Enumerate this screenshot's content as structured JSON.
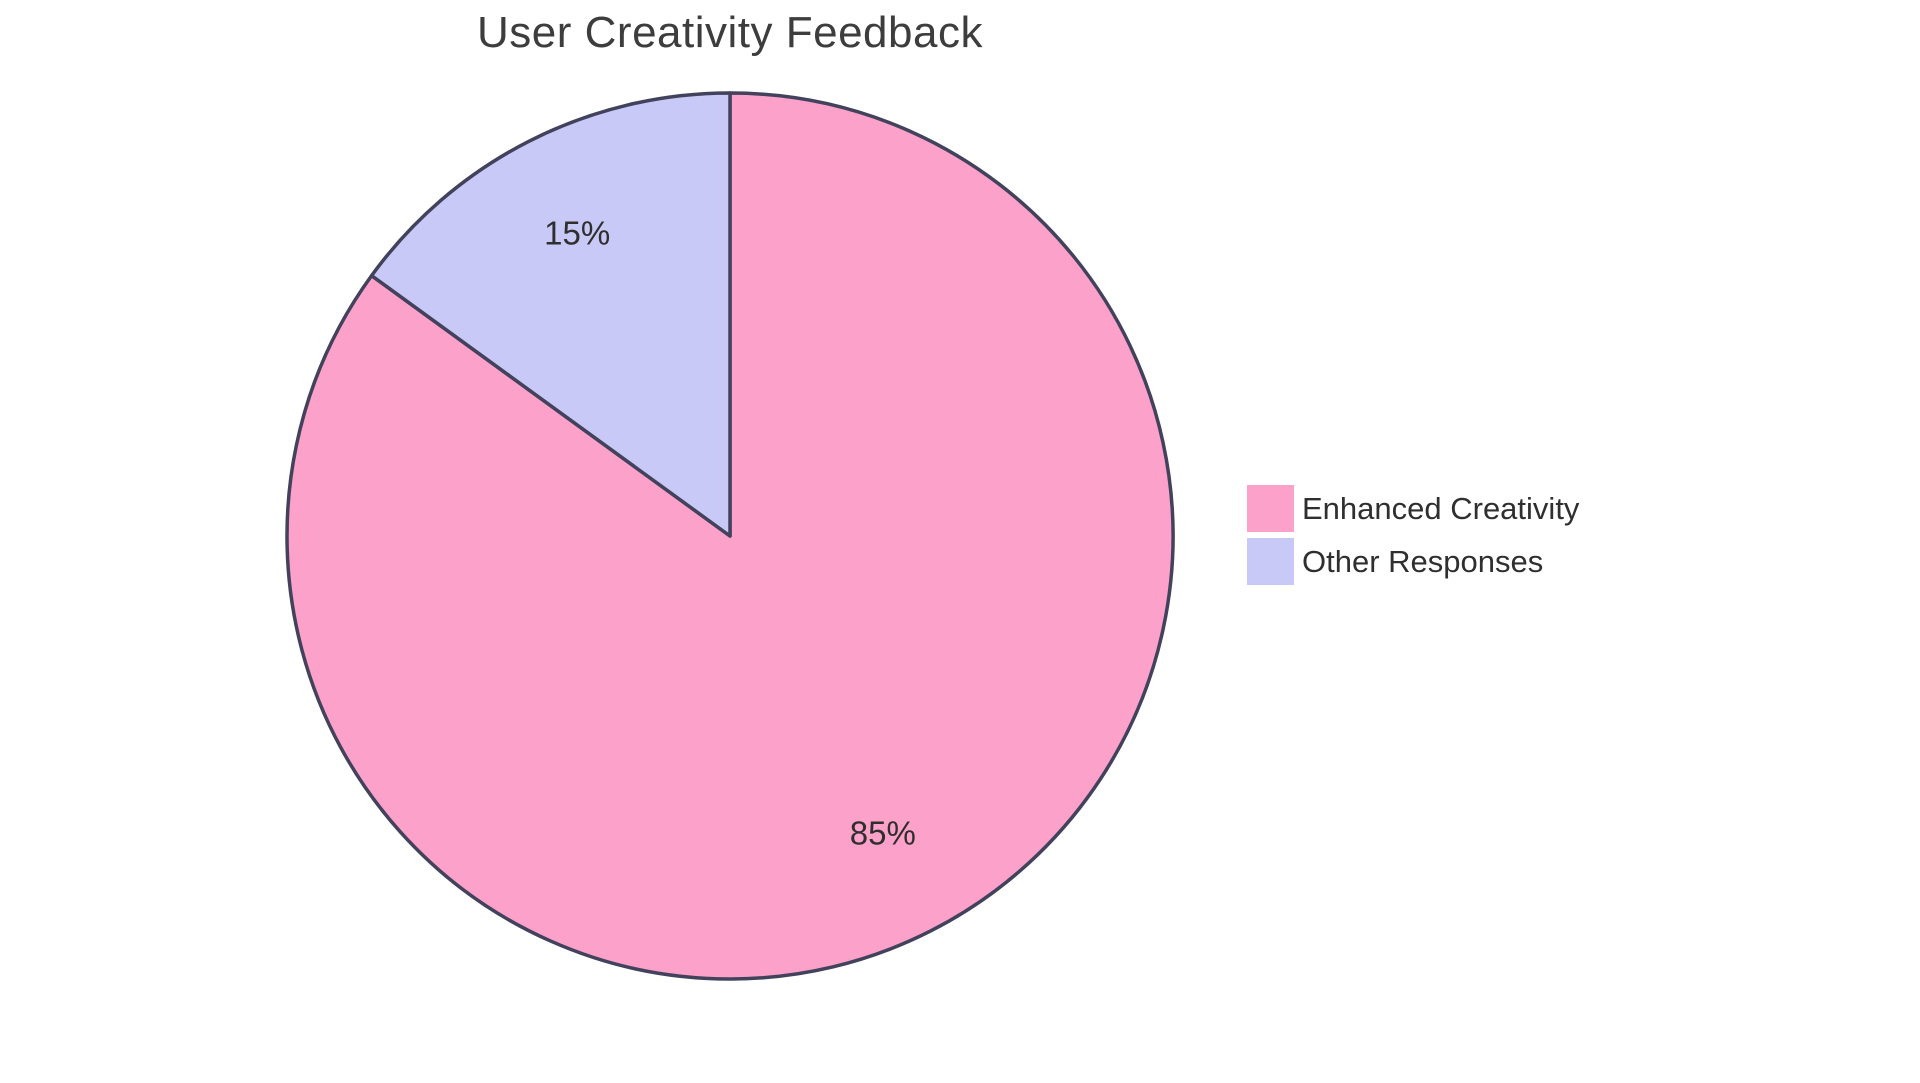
{
  "chart_data": {
    "type": "pie",
    "title": "User Creativity Feedback",
    "slices": [
      {
        "label": "Enhanced Creativity",
        "value": 85,
        "display": "85%",
        "color": "#FCA1C9"
      },
      {
        "label": "Other Responses",
        "value": 15,
        "display": "15%",
        "color": "#C9C9F7"
      }
    ],
    "start_angle_deg": -90,
    "direction": "clockwise",
    "stroke_color": "#42425C",
    "stroke_width": 3.5,
    "label_color": "#2F2F2F",
    "title_color": "#3D3D3D",
    "background_color": "#FFFFFF",
    "legend_position": "right"
  }
}
